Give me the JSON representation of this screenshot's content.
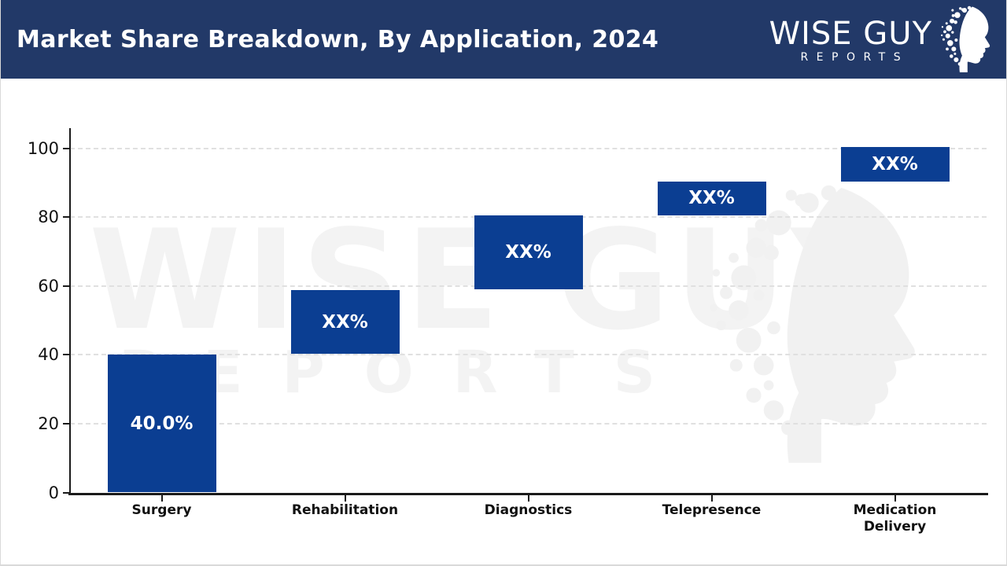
{
  "header": {
    "title": "Market Share Breakdown, By Application, 2024",
    "logo": {
      "line1": "WISE GUY",
      "line2": "REPORTS"
    }
  },
  "watermark": {
    "line1": "WISE GUY",
    "line2": "REPORTS"
  },
  "chart_data": {
    "type": "bar",
    "variant": "waterfall",
    "title": "Market Share Breakdown, By Application, 2024",
    "unit": "%",
    "categories": [
      "Surgery",
      "Rehabilitation",
      "Diagnostics",
      "Telepresence",
      "Medication\nDelivery"
    ],
    "bars": [
      {
        "category": "Surgery",
        "start": 0,
        "end": 40,
        "label": "40.0%"
      },
      {
        "category": "Rehabilitation",
        "start": 40.2,
        "end": 58.8,
        "label": "XX%"
      },
      {
        "category": "Diagnostics",
        "start": 59,
        "end": 80.5,
        "label": "XX%"
      },
      {
        "category": "Telepresence",
        "start": 80.5,
        "end": 90.3,
        "label": "XX%"
      },
      {
        "category": "Medication Delivery",
        "start": 90.3,
        "end": 100.3,
        "label": "XX%"
      }
    ],
    "y_ticks": [
      0,
      20,
      40,
      60,
      80,
      100
    ],
    "ylim": [
      0,
      106
    ],
    "grid": "horizontal-dashed",
    "legend": "none",
    "colors": {
      "bar": "#0b3e92",
      "header_bg": "#223968",
      "grid": "#e0e0e0",
      "axis": "#1a1a1a",
      "value_label": "#ffffff",
      "watermark": "#f3f3f3"
    }
  }
}
